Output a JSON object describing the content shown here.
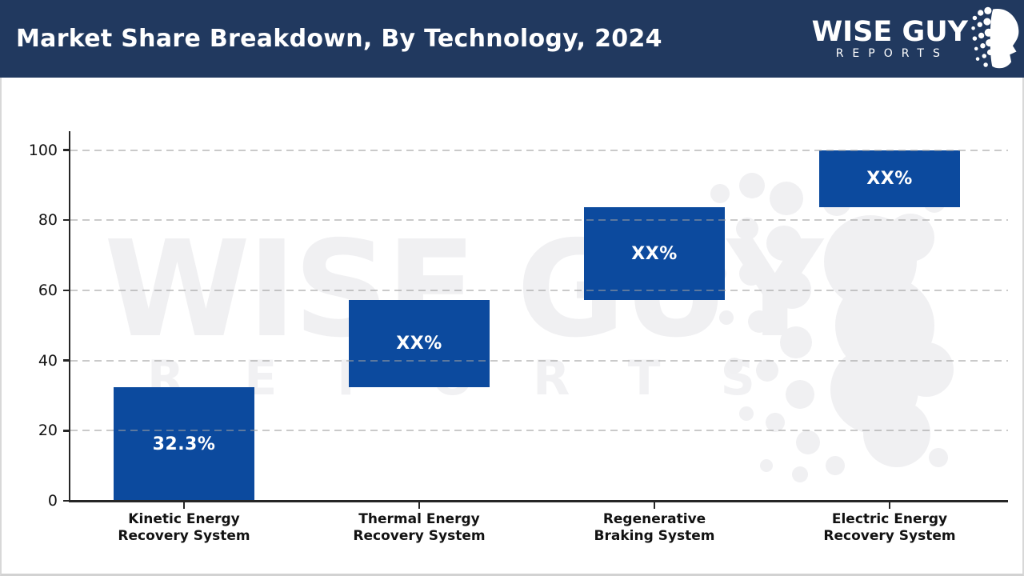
{
  "header": {
    "title": "Market Share Breakdown, By Technology, 2024",
    "logo_line1": "WISE GUY",
    "logo_line2": "REPORTS"
  },
  "watermark": {
    "line1": "WISE GUY",
    "line2": "REPORTS"
  },
  "colors": {
    "header_bg": "#21395f",
    "bar": "#0c4a9e",
    "bar_label": "#ffffff",
    "axis": "#262626",
    "grid": "#cfcfcf",
    "watermark": "#f0f0f2"
  },
  "chart_data": {
    "type": "bar",
    "subtype": "floating-waterfall-bars",
    "title": "Market Share Breakdown, By Technology, 2024",
    "categories": [
      [
        "Kinetic Energy",
        "Recovery System"
      ],
      [
        "Thermal Energy",
        "Recovery System"
      ],
      [
        "Regenerative",
        "Braking System"
      ],
      [
        "Electric Energy",
        "Recovery System"
      ]
    ],
    "bars": [
      {
        "label": "32.3%",
        "start": 0,
        "end": 32.3
      },
      {
        "label": "XX%",
        "start": 32.3,
        "end": 57.2
      },
      {
        "label": "XX%",
        "start": 57.2,
        "end": 83.6
      },
      {
        "label": "XX%",
        "start": 83.6,
        "end": 100
      }
    ],
    "yticks": [
      0,
      20,
      40,
      60,
      80,
      100
    ],
    "ylim": [
      0,
      100
    ],
    "xlabel": "",
    "ylabel": "",
    "grid": "horizontal-dashed",
    "legend": null
  }
}
